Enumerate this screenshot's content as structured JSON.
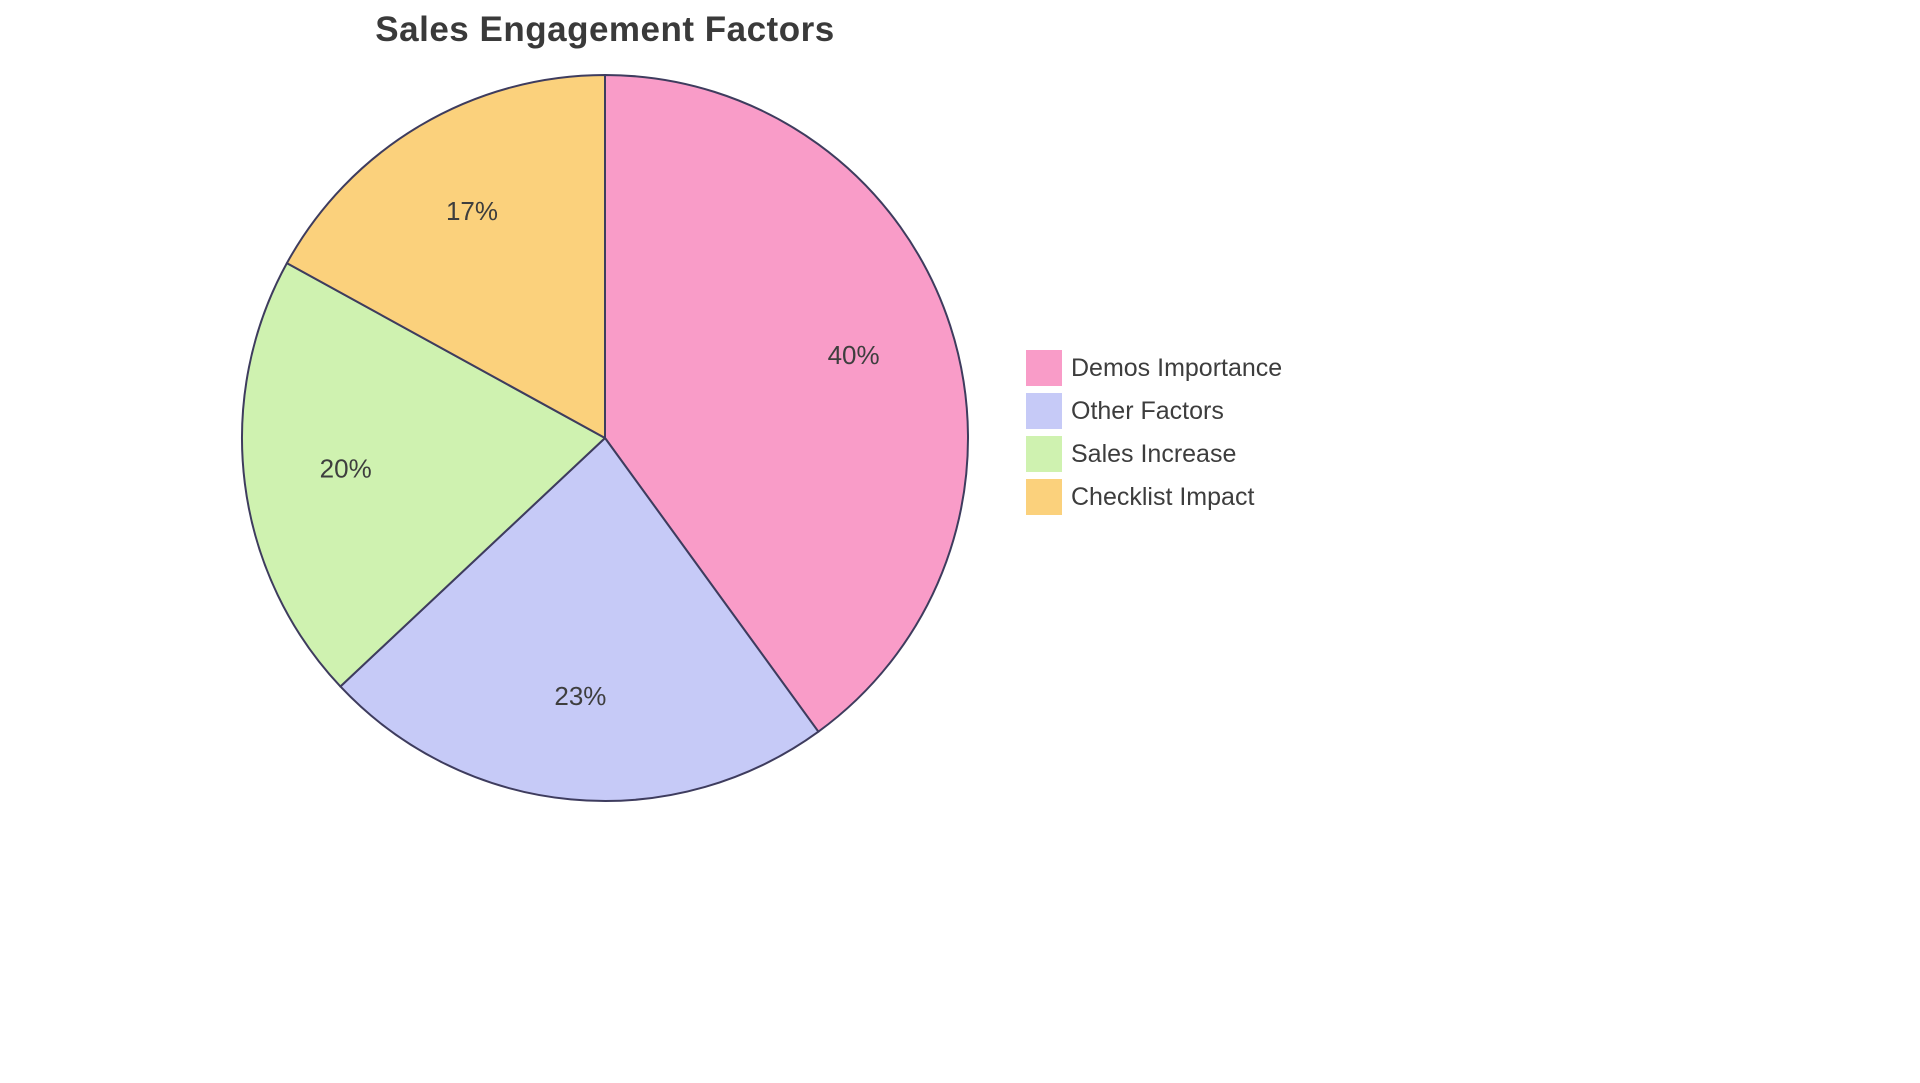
{
  "chart_data": {
    "type": "pie",
    "title": "Sales Engagement Factors",
    "labels": [
      "Demos Importance",
      "Other Factors",
      "Sales Increase",
      "Checklist Impact"
    ],
    "values": [
      40,
      23,
      20,
      17
    ],
    "slice_labels": [
      "40%",
      "23%",
      "20%",
      "17%"
    ],
    "colors": [
      "#F99CC8",
      "#C6CAF7",
      "#CFF2B0",
      "#FBD17C"
    ],
    "stroke_color": "#3E3C5E",
    "stroke_width": 2,
    "start_angle_deg": 0,
    "direction": "clockwise",
    "legend_position": "right",
    "label_color": "#3E3E3E",
    "background": "#FFFFFF"
  }
}
